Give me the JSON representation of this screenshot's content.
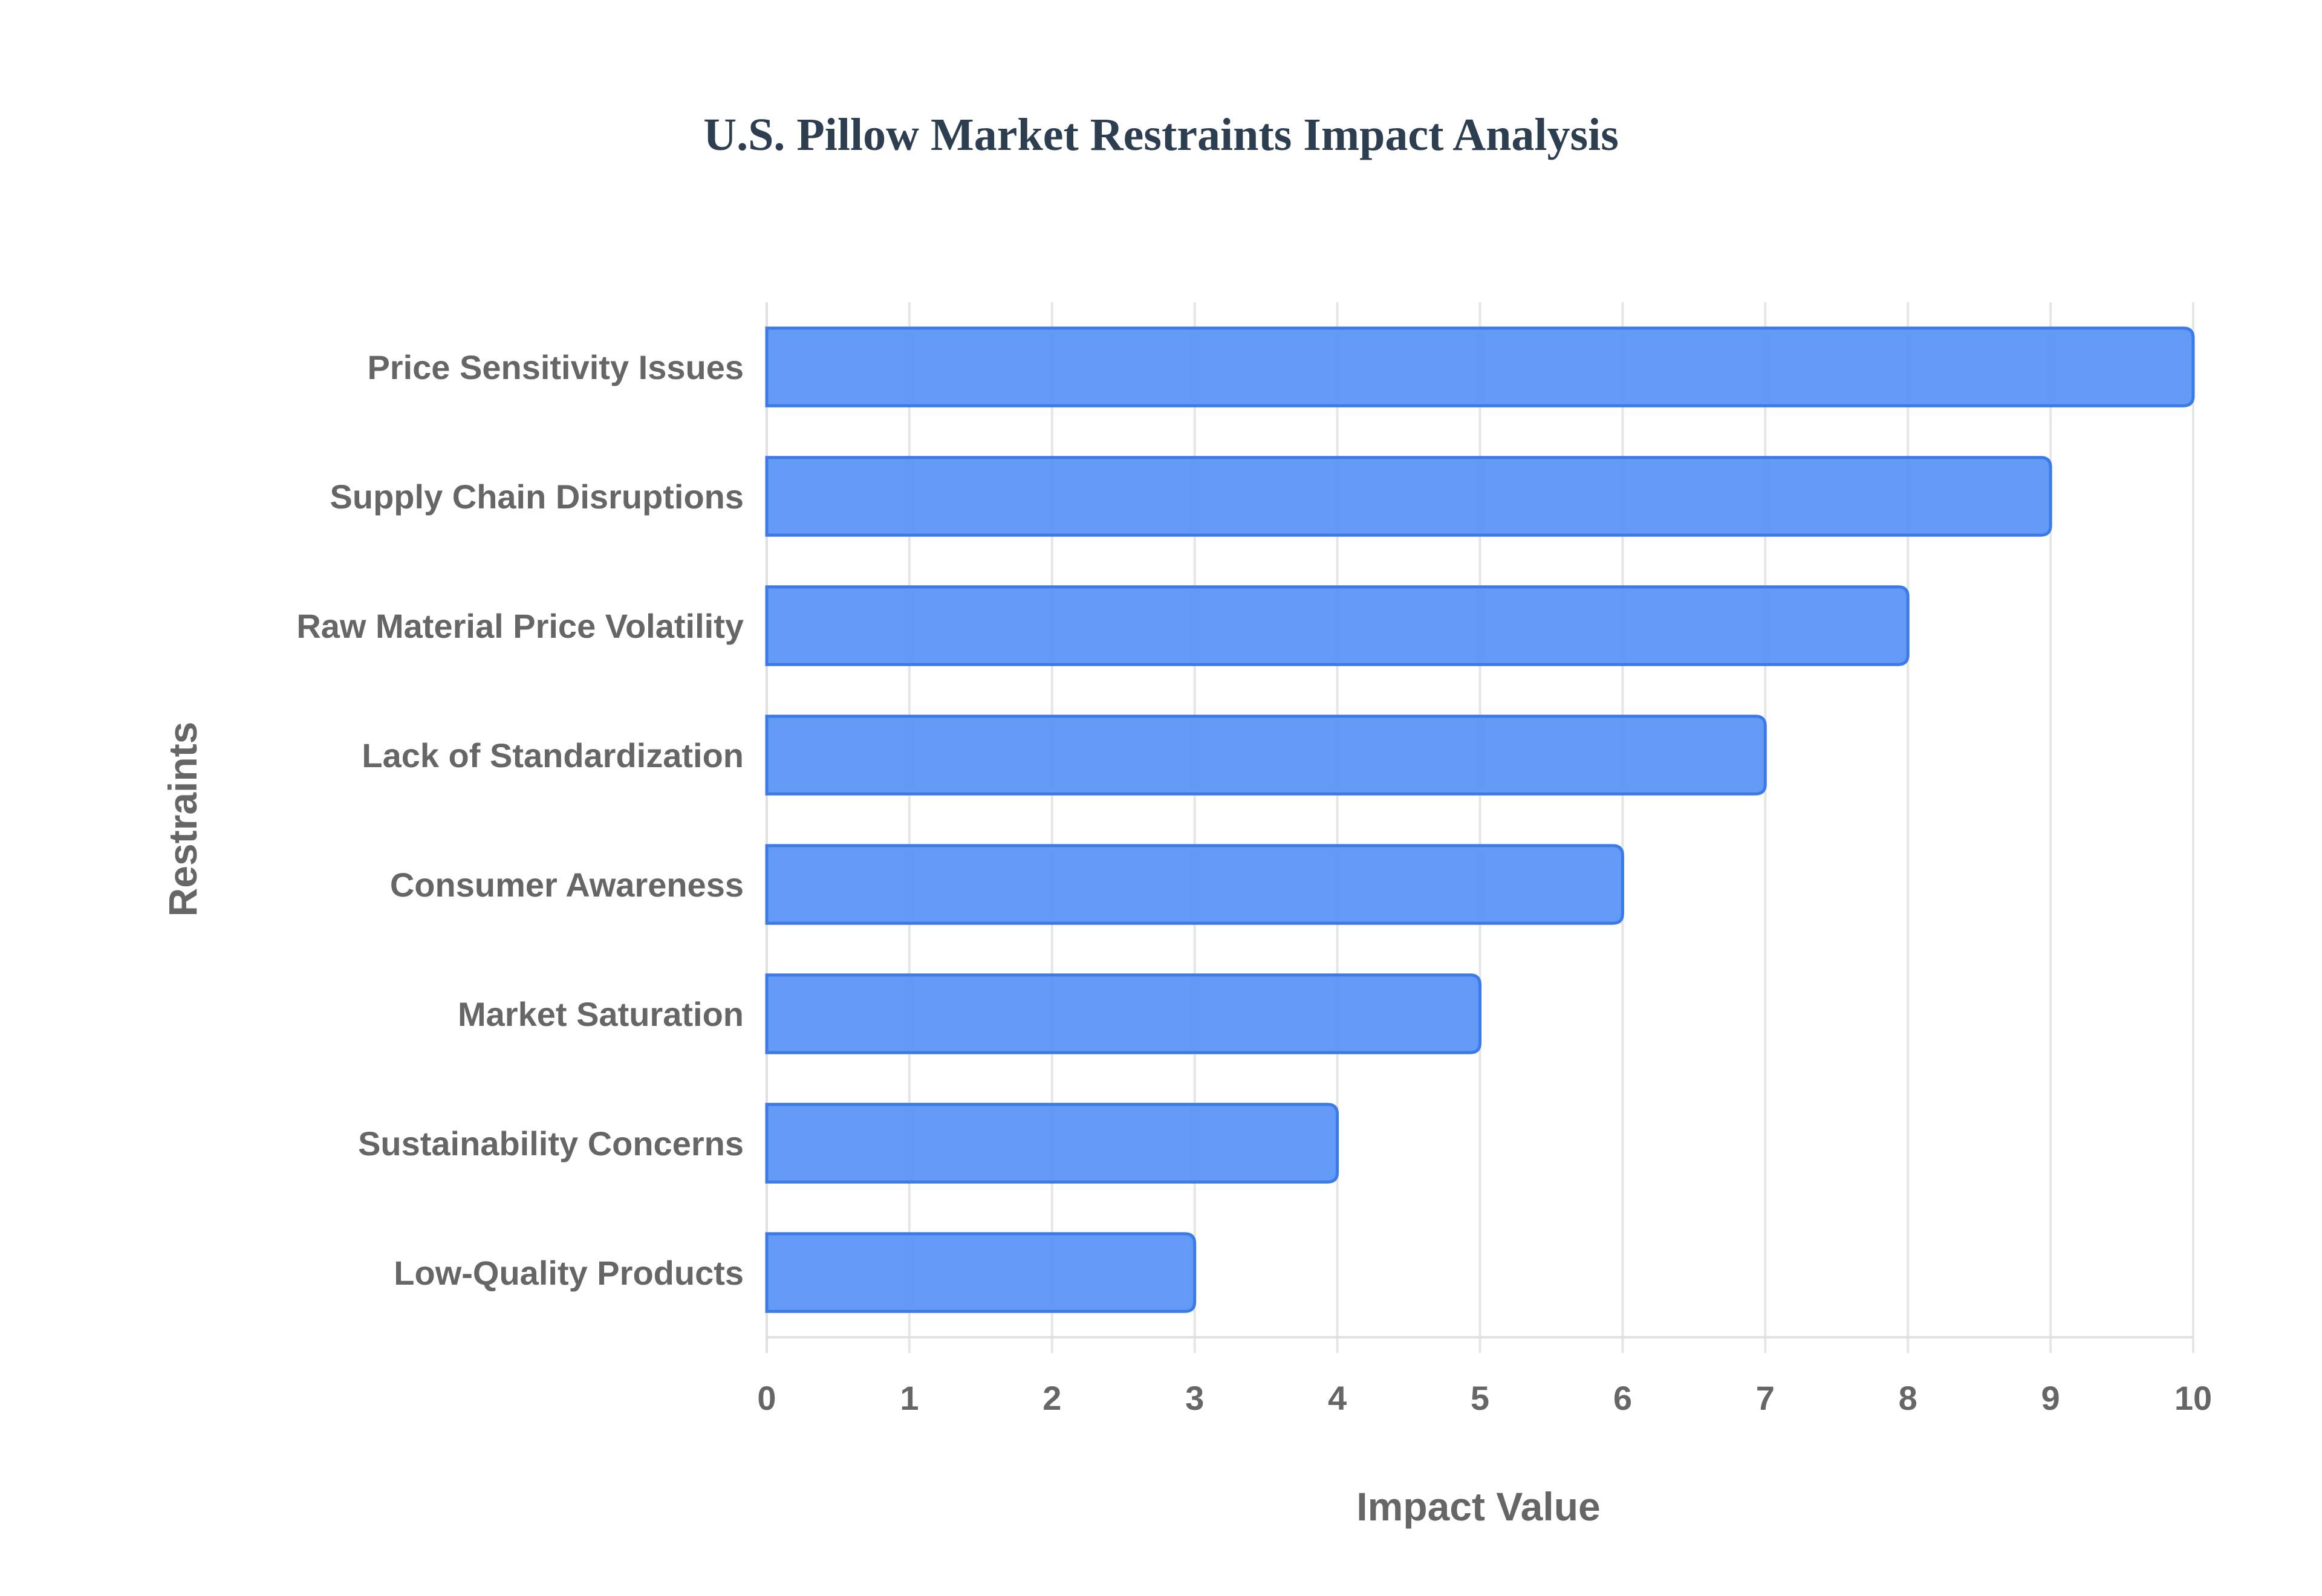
{
  "chart_data": {
    "type": "bar",
    "orientation": "horizontal",
    "title": "U.S. Pillow Market Restraints Impact Analysis",
    "xlabel": "Impact Value",
    "ylabel": "Restraints",
    "xlim": [
      0,
      10
    ],
    "x_ticks": [
      "0",
      "1",
      "2",
      "3",
      "4",
      "5",
      "6",
      "7",
      "8",
      "9",
      "10"
    ],
    "categories": [
      "Price Sensitivity Issues",
      "Supply Chain Disruptions",
      "Raw Material Price Volatility",
      "Lack of Standardization",
      "Consumer Awareness",
      "Market Saturation",
      "Sustainability Concerns",
      "Low-Quality Products"
    ],
    "values": [
      10,
      9,
      8,
      7,
      6,
      5,
      4,
      3
    ],
    "grid": true,
    "legend": "none",
    "colors": {
      "bar_fill": "#5b95f5",
      "bar_border": "#3b7ae8",
      "title": "#2c3e50",
      "text": "#666666",
      "grid": "#e6e6e6"
    }
  }
}
